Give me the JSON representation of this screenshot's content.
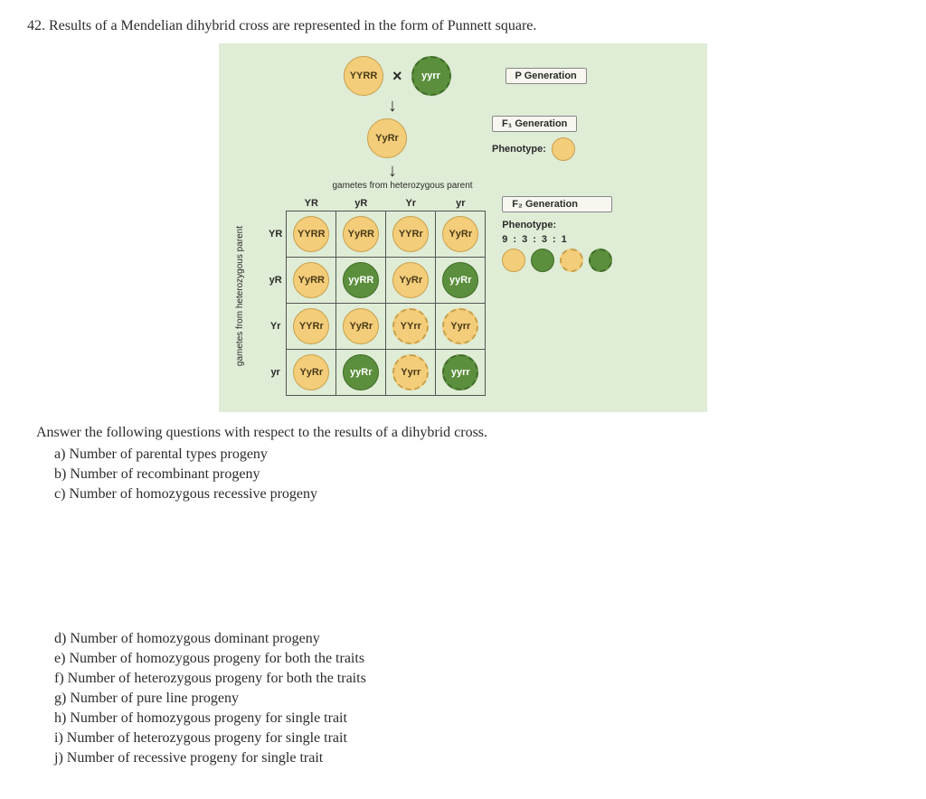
{
  "question": {
    "number": "42.",
    "title": "Results of a Mendelian dihybrid cross are represented in the form of Punnett square."
  },
  "diagram": {
    "background": "#dfecd6",
    "colors": {
      "yellow": "#f3cd7a",
      "yellow_border": "#c9a04a",
      "green": "#5c8f3d",
      "green_border": "#3f6b27",
      "yellow_wrinkled": "#f3cd7a",
      "green_wrinkled": "#5c8f3d"
    },
    "p_parent1": "YYRR",
    "p_parent2": "yyrr",
    "p_label": "P Generation",
    "f1_genotype": "YyRr",
    "f1_label": "F₁ Generation",
    "phenotype_label": "Phenotype:",
    "gametes_caption": "gametes from heterozygous parent",
    "side_caption": "gametes from heterozygous parent",
    "col_headers": [
      "YR",
      "yR",
      "Yr",
      "yr"
    ],
    "row_headers": [
      "YR",
      "yR",
      "Yr",
      "yr"
    ],
    "cells": [
      [
        {
          "g": "YYRR",
          "fill": "#f3cd7a",
          "wr": false
        },
        {
          "g": "YyRR",
          "fill": "#f3cd7a",
          "wr": false
        },
        {
          "g": "YYRr",
          "fill": "#f3cd7a",
          "wr": false
        },
        {
          "g": "YyRr",
          "fill": "#f3cd7a",
          "wr": false
        }
      ],
      [
        {
          "g": "YyRR",
          "fill": "#f3cd7a",
          "wr": false
        },
        {
          "g": "yyRR",
          "fill": "#5c8f3d",
          "wr": false
        },
        {
          "g": "YyRr",
          "fill": "#f3cd7a",
          "wr": false
        },
        {
          "g": "yyRr",
          "fill": "#5c8f3d",
          "wr": false
        }
      ],
      [
        {
          "g": "YYRr",
          "fill": "#f3cd7a",
          "wr": false
        },
        {
          "g": "YyRr",
          "fill": "#f3cd7a",
          "wr": false
        },
        {
          "g": "YYrr",
          "fill": "#f3cd7a",
          "wr": true
        },
        {
          "g": "Yyrr",
          "fill": "#f3cd7a",
          "wr": true
        }
      ],
      [
        {
          "g": "YyRr",
          "fill": "#f3cd7a",
          "wr": false
        },
        {
          "g": "yyRr",
          "fill": "#5c8f3d",
          "wr": false
        },
        {
          "g": "Yyrr",
          "fill": "#f3cd7a",
          "wr": true
        },
        {
          "g": "yyrr",
          "fill": "#5c8f3d",
          "wr": true
        }
      ]
    ],
    "f2_label": "F₂ Generation",
    "ratio": [
      "9",
      ":",
      "3",
      ":",
      "3",
      ":",
      "1"
    ],
    "ratio_phenos": [
      {
        "fill": "#f3cd7a",
        "wr": false
      },
      {
        "fill": "#5c8f3d",
        "wr": false
      },
      {
        "fill": "#f3cd7a",
        "wr": true
      },
      {
        "fill": "#5c8f3d",
        "wr": true
      }
    ]
  },
  "answer_prompt": "Answer the following questions with respect to the results of a dihybrid cross.",
  "answers_top": [
    {
      "k": "a)",
      "t": "Number of parental types progeny"
    },
    {
      "k": "b)",
      "t": "Number of recombinant progeny"
    },
    {
      "k": "c)",
      "t": "Number of homozygous recessive progeny"
    }
  ],
  "answers_bottom": [
    {
      "k": "d)",
      "t": "Number of homozygous dominant progeny"
    },
    {
      "k": "e)",
      "t": "Number of homozygous progeny for both the traits"
    },
    {
      "k": "f)",
      "t": "Number of heterozygous progeny for both the traits"
    },
    {
      "k": "g)",
      "t": "Number of pure line progeny"
    },
    {
      "k": "h)",
      "t": "Number of homozygous progeny for single trait"
    },
    {
      "k": "i)",
      "t": "Number of heterozygous progeny for single trait"
    },
    {
      "k": "j)",
      "t": "Number of recessive progeny for single trait"
    }
  ]
}
